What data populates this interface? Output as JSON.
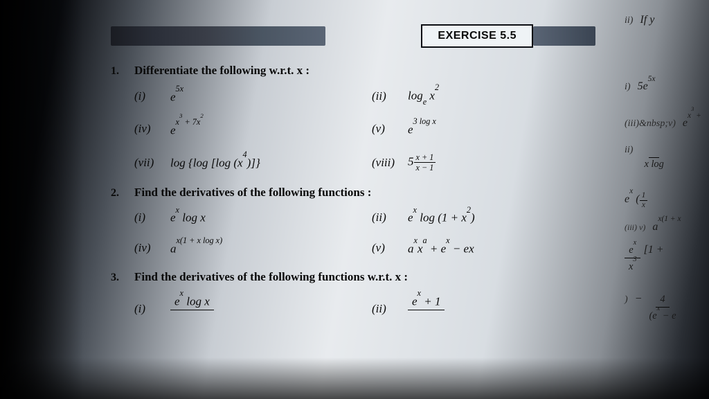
{
  "exercise_label": "EXERCISE 5.5",
  "q1": {
    "num": "1.",
    "text": "Differentiate the following w.r.t. x :",
    "items": {
      "i": {
        "label": "(i)",
        "html": "e<sup>5x</sup>"
      },
      "ii": {
        "label": "(ii)",
        "html": "log<sub>e</sub> x<sup>2</sup>"
      },
      "iv": {
        "label": "(iv)",
        "html": "e<sup>x<sup>3</sup> + 7x<sup>2</sup></sup>"
      },
      "v": {
        "label": "(v)",
        "html": "e<sup>3 log x</sup>"
      },
      "vii": {
        "label": "(vii)",
        "html": "log {log [log (x<sup>4</sup>)]}"
      },
      "viii": {
        "label": "(viii)",
        "html": "5<span class=\"frac\"><span class=\"num\">x + 1</span><span class=\"den\">x − 1</span></span>"
      }
    }
  },
  "q2": {
    "num": "2.",
    "text": "Find the derivatives of the following functions :",
    "items": {
      "i": {
        "label": "(i)",
        "html": "e<sup>x</sup> log x"
      },
      "ii": {
        "label": "(ii)",
        "html": "e<sup>x</sup> log (1 + x<sup>2</sup>)"
      },
      "iv": {
        "label": "(iv)",
        "html": "a<sup>x(1 + x log x)</sup>"
      },
      "v": {
        "label": "(v)",
        "html": "a<sup>x</sup>x<sup>a</sup> + e<sup>x</sup> − ex"
      }
    }
  },
  "q3": {
    "num": "3.",
    "text": "Find the derivatives of the following functions w.r.t. x :",
    "items": {
      "i": {
        "label": "(i)",
        "html": "<span class=\"frac-big\"><span class=\"num\">e<sup>x</sup> log x</span><span class=\"den\">&nbsp;</span></span>"
      },
      "ii": {
        "label": "(ii)",
        "html": "<span class=\"frac-big\"><span class=\"num\">e<sup>x</sup> + 1</span><span class=\"den\">&nbsp;</span></span>"
      }
    }
  },
  "right_page": {
    "r1": {
      "label": "ii)",
      "html": "If y"
    },
    "r2": {
      "label": "i)",
      "html": "5e<sup>5x</sup>"
    },
    "r3": {
      "label": "(iii)&nbsp;v)",
      "html": "e<sup>x<sup>3</sup> +</sup>"
    },
    "r4": {
      "label": "ii)",
      "html": "<span class=\"frac-big\" style=\"font-size:0.9em\"><span class=\"num\">&nbsp;</span><span class=\"den\">x log</span></span>"
    },
    "r5": {
      "label": "",
      "html": "e<sup>x</sup> (<span class=\"frac\"><span class=\"num\">1</span><span class=\"den\">x</span></span>"
    },
    "r6": {
      "label": "(iii) v)",
      "html": "a<sup>x(1 + x</sup>"
    },
    "r7": {
      "label": "",
      "html": "<span class=\"frac-big\" style=\"font-size:0.9em\"><span class=\"num\">e<sup>x</sup></span><span class=\"den\">x<sup>3</sup></span></span> [1 +"
    },
    "r8": {
      "label": ")",
      "html": "− <span class=\"frac-big\" style=\"font-size:0.9em\"><span class=\"num\">4</span><span class=\"den\">(e<sup>x</sup> − e</span></span>"
    }
  },
  "style": {
    "exercise_fontsize": 18,
    "question_fontsize": 17,
    "item_fontsize": 17,
    "text_color": "#0a0a0a"
  }
}
